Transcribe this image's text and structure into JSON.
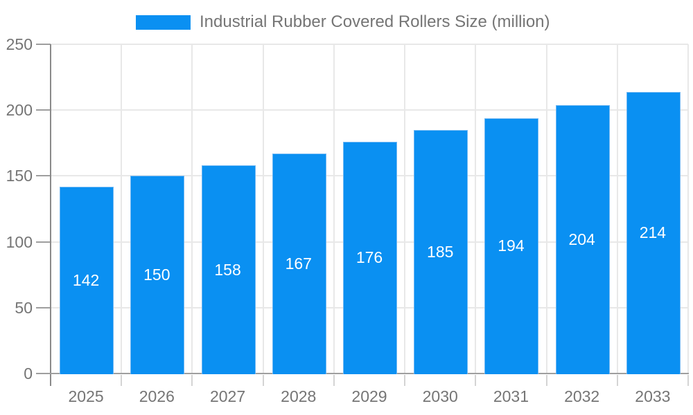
{
  "legend": {
    "label": "Industrial Rubber Covered Rollers Size (million)"
  },
  "chart_data": {
    "type": "bar",
    "title": "Industrial Rubber Covered Rollers Size (million)",
    "categories": [
      "2025",
      "2026",
      "2027",
      "2028",
      "2029",
      "2030",
      "2031",
      "2032",
      "2033"
    ],
    "series": [
      {
        "name": "Industrial Rubber Covered Rollers Size (million)",
        "values": [
          142,
          150,
          158,
          167,
          176,
          185,
          194,
          204,
          214
        ]
      }
    ],
    "xlabel": "",
    "ylabel": "",
    "ylim": [
      0,
      250
    ],
    "yticks": [
      0,
      50,
      100,
      150,
      200,
      250
    ],
    "grid": true,
    "legend_position": "top",
    "value_label_position": "inside-center",
    "colors": {
      "bar_fill": "#0a90f2",
      "bar_border": "#72b8f3",
      "gridline": "#e8e8e8",
      "y_axis_line": "#8a8a8a",
      "x_axis_line": "#9e9e9e",
      "y_tick": "#9e9e9e",
      "x_tick": "#d4d4d4",
      "axis_text": "#757575",
      "value_text": "#ffffff",
      "background": "#ffffff"
    }
  }
}
